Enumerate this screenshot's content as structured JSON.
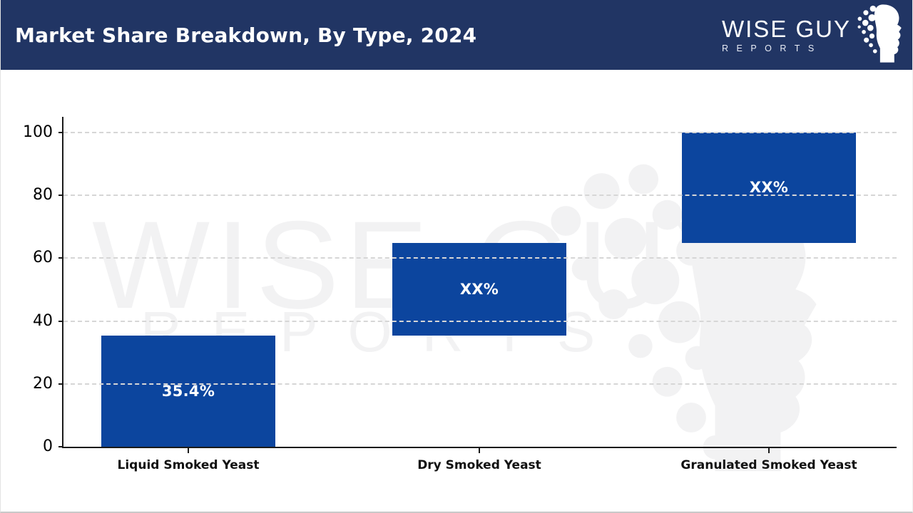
{
  "header": {
    "title": "Market Share Breakdown, By Type, 2024",
    "bg_color": "#213564",
    "logo": {
      "line1": "WISE GUY",
      "line2": "REPORTS"
    }
  },
  "watermark": {
    "line1": "WISE GUY",
    "line2": "REPORTS"
  },
  "chart_data": {
    "type": "bar",
    "variant": "waterfall",
    "title": "Market Share Breakdown, By Type, 2024",
    "categories": [
      "Liquid Smoked Yeast",
      "Dry Smoked Yeast",
      "Granulated Smoked Yeast"
    ],
    "bars": [
      {
        "category": "Liquid Smoked Yeast",
        "start": 0,
        "end": 35.4,
        "label": "35.4%"
      },
      {
        "category": "Dry Smoked Yeast",
        "start": 35.4,
        "end": 64.9,
        "label": "XX%"
      },
      {
        "category": "Granulated Smoked Yeast",
        "start": 64.9,
        "end": 100,
        "label": "XX%"
      }
    ],
    "yticks": [
      0,
      20,
      40,
      60,
      80,
      100
    ],
    "ylim": [
      0,
      105
    ],
    "grid": "horizontal-dashed",
    "legend": "none",
    "bar_color": "#0c459e",
    "bar_label_color": "#ffffff",
    "gridline_color": "#d6d6d6",
    "axis_color": "#1a1a1a",
    "tick_label_color": "#000000"
  }
}
